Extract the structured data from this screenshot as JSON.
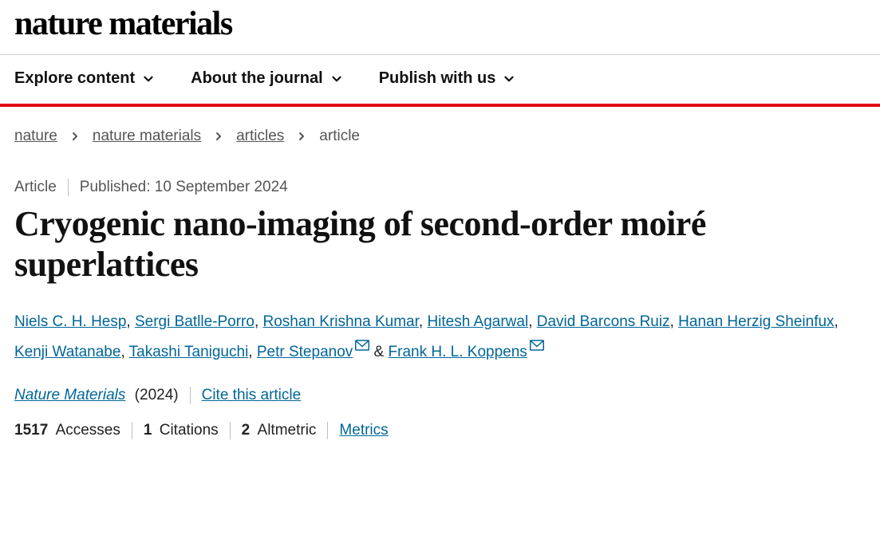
{
  "brand": "nature materials",
  "nav": {
    "items": [
      {
        "label": "Explore content"
      },
      {
        "label": "About the journal"
      },
      {
        "label": "Publish with us"
      }
    ]
  },
  "breadcrumbs": {
    "items": [
      {
        "label": "nature",
        "link": true
      },
      {
        "label": "nature materials",
        "link": true
      },
      {
        "label": "articles",
        "link": true
      },
      {
        "label": "article",
        "link": false
      }
    ]
  },
  "article": {
    "type": "Article",
    "published_label": "Published: 10 September 2024",
    "title": "Cryogenic nano-imaging of second-order moiré superlattices",
    "authors": [
      {
        "name": "Niels C. H. Hesp",
        "mail": false,
        "sep": ", "
      },
      {
        "name": "Sergi Batlle-Porro",
        "mail": false,
        "sep": ", "
      },
      {
        "name": "Roshan Krishna Kumar",
        "mail": false,
        "sep": ", "
      },
      {
        "name": "Hitesh Agarwal",
        "mail": false,
        "sep": ", "
      },
      {
        "name": "David Barcons Ruiz",
        "mail": false,
        "sep": ", "
      },
      {
        "name": "Hanan Herzig Sheinfux",
        "mail": false,
        "sep": ", "
      },
      {
        "name": "Kenji Watanabe",
        "mail": false,
        "sep": ", "
      },
      {
        "name": "Takashi Taniguchi",
        "mail": false,
        "sep": ", "
      },
      {
        "name": "Petr Stepanov",
        "mail": true,
        "sep": " & "
      },
      {
        "name": "Frank H. L. Koppens",
        "mail": true,
        "sep": ""
      }
    ],
    "journal": "Nature Materials",
    "year": "(2024)",
    "cite_label": "Cite this article",
    "metrics": {
      "accesses": {
        "value": "1517",
        "label": "Accesses"
      },
      "citations": {
        "value": "1",
        "label": "Citations"
      },
      "altmetric": {
        "value": "2",
        "label": "Altmetric"
      },
      "link_label": "Metrics"
    }
  },
  "colors": {
    "accent_red": "#e30613",
    "link_blue": "#006699"
  }
}
